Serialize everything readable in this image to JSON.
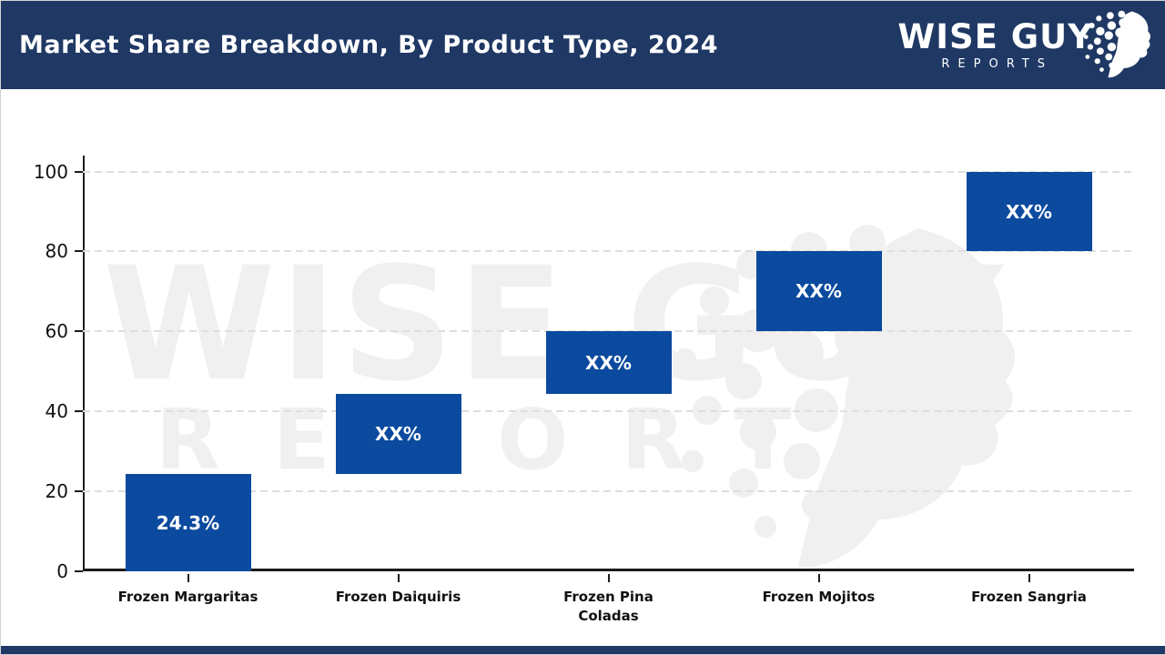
{
  "header": {
    "title": "Market Share Breakdown, By Product Type, 2024",
    "logo": {
      "wordmark": "WISE GUY",
      "subtext": "REPORTS"
    }
  },
  "watermark": {
    "wordmark": "WISE GUY",
    "subtext": "REPORTS"
  },
  "colors": {
    "header_bg": "#1f3864",
    "footer_bg": "#1f3864",
    "bar": "#0b4a9e",
    "bar_label": "#ffffff",
    "grid": "#dedede",
    "axis": "#1a1a1a",
    "watermark": "#f0f0f0"
  },
  "chart_data": {
    "type": "bar",
    "subtype": "waterfall",
    "title": "Market Share Breakdown, By Product Type, 2024",
    "categories": [
      "Frozen Margaritas",
      "Frozen Daiquiris",
      "Frozen Pina Coladas",
      "Frozen Mojitos",
      "Frozen Sangria"
    ],
    "segments": [
      {
        "category": "Frozen Margaritas",
        "start": 0,
        "end": 24.3,
        "label": "24.3%"
      },
      {
        "category": "Frozen Daiquiris",
        "start": 24.3,
        "end": 44.3,
        "label": "XX%"
      },
      {
        "category": "Frozen Pina Coladas",
        "start": 44.3,
        "end": 60,
        "label": "XX%"
      },
      {
        "category": "Frozen Mojitos",
        "start": 60,
        "end": 80,
        "label": "XX%"
      },
      {
        "category": "Frozen Sangria",
        "start": 80,
        "end": 100,
        "label": "XX%"
      }
    ],
    "yticks": [
      0,
      20,
      40,
      60,
      80,
      100
    ],
    "ylim": [
      0,
      104
    ],
    "xlabel": "",
    "ylabel": "",
    "grid": true,
    "gridstyle": "dashed",
    "legend": false
  }
}
